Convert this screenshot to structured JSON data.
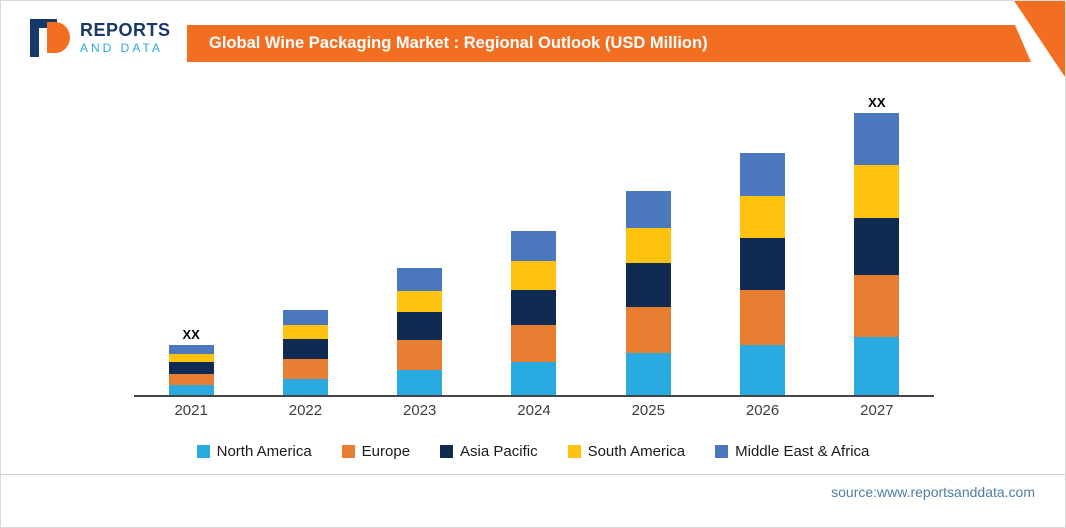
{
  "header": {
    "logo": {
      "reports": "REPORTS",
      "and_data": "AND DATA"
    },
    "title": "Global Wine Packaging Market : Regional Outlook (USD Million)"
  },
  "chart_data": {
    "type": "bar",
    "stacked": true,
    "title": "Global Wine Packaging Market : Regional Outlook (USD Million)",
    "value_unit": "USD Million",
    "categories": [
      "2021",
      "2022",
      "2023",
      "2024",
      "2025",
      "2026",
      "2027"
    ],
    "series": [
      {
        "name": "North America",
        "color": "#29ABE2",
        "values": [
          10,
          16,
          25,
          33,
          42,
          50,
          58
        ]
      },
      {
        "name": "Europe",
        "color": "#E87E31",
        "values": [
          11,
          20,
          30,
          37,
          46,
          55,
          62
        ]
      },
      {
        "name": "Asia Pacific",
        "color": "#0F2B52",
        "values": [
          12,
          20,
          28,
          35,
          44,
          52,
          57
        ]
      },
      {
        "name": "South America",
        "color": "#FFC20E",
        "values": [
          8,
          14,
          21,
          29,
          35,
          42,
          53
        ]
      },
      {
        "name": "Middle East & Africa",
        "color": "#4A77BE",
        "values": [
          9,
          15,
          23,
          30,
          37,
          43,
          52
        ]
      }
    ],
    "bar_labels": [
      "XX",
      "",
      "",
      "",
      "",
      "",
      "XX"
    ],
    "legend_position": "bottom",
    "grid": false,
    "y_axis_labels_visible": false
  },
  "footer": {
    "source": "source:www.reportsanddata.com"
  }
}
